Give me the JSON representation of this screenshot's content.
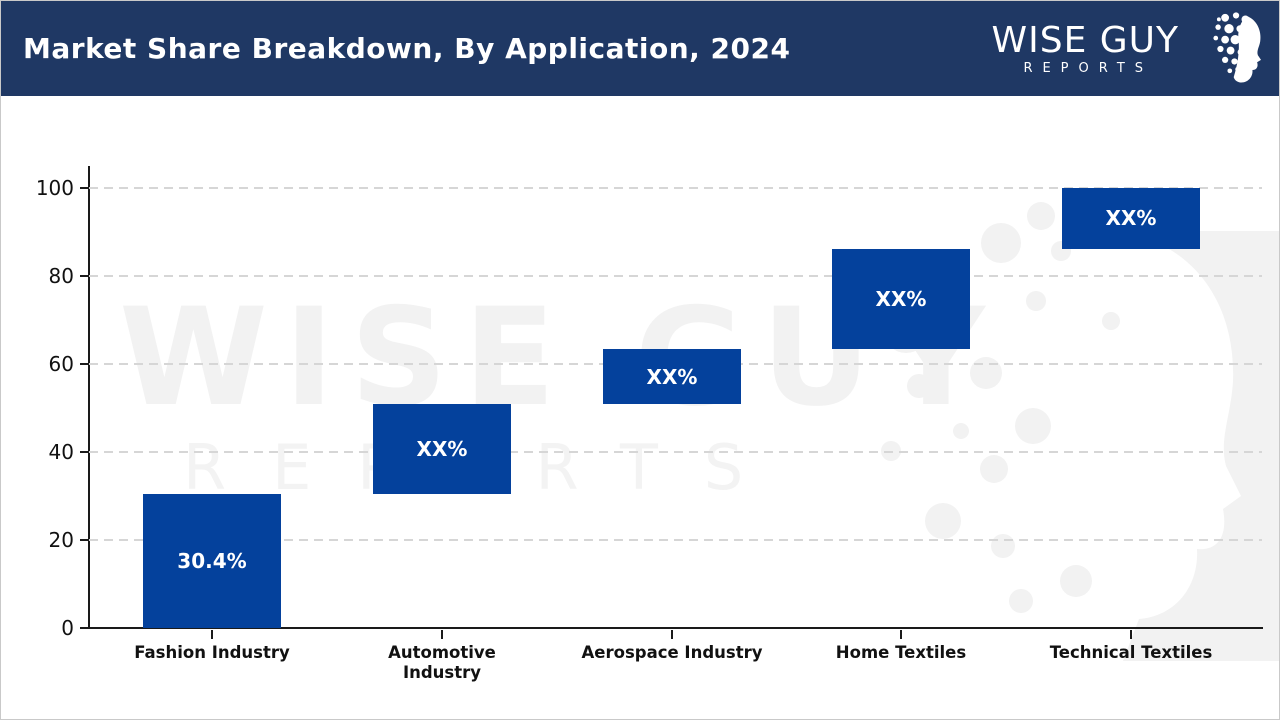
{
  "header": {
    "title": "Market Share Breakdown, By Application, 2024",
    "logo": {
      "brand": "WISE GUY",
      "sub": "REPORTS"
    }
  },
  "watermark": {
    "line1": "WISE GUY",
    "line2": "REPORTS"
  },
  "colors": {
    "header_bg": "#1f3864",
    "bar": "#04419c",
    "axis": "#1a1a1a",
    "gridline": "#d6d6d6",
    "watermark": "#f2f2f2"
  },
  "chart_data": {
    "type": "bar",
    "subtype": "waterfall",
    "title": "Market Share Breakdown, By Application, 2024",
    "xlabel": "",
    "ylabel": "",
    "ylim": [
      0,
      100
    ],
    "yticks": [
      0,
      20,
      40,
      60,
      80,
      100
    ],
    "grid": "horizontal-dashed",
    "legend": null,
    "bar_color": "#04419c",
    "categories": [
      "Fashion Industry",
      "Automotive\nIndustry",
      "Aerospace Industry",
      "Home Textiles",
      "Technical Textiles"
    ],
    "bars": [
      {
        "category": "Fashion Industry",
        "start": 0,
        "end": 30.4,
        "value": 30.4,
        "label": "30.4%"
      },
      {
        "category": "Automotive\nIndustry",
        "start": 30.4,
        "end": 50.9,
        "value": 20.5,
        "label": "XX%"
      },
      {
        "category": "Aerospace Industry",
        "start": 50.9,
        "end": 63.4,
        "value": 12.5,
        "label": "XX%"
      },
      {
        "category": "Home Textiles",
        "start": 63.4,
        "end": 86.2,
        "value": 22.8,
        "label": "XX%"
      },
      {
        "category": "Technical Textiles",
        "start": 86.2,
        "end": 100,
        "value": 13.8,
        "label": "XX%"
      }
    ]
  }
}
